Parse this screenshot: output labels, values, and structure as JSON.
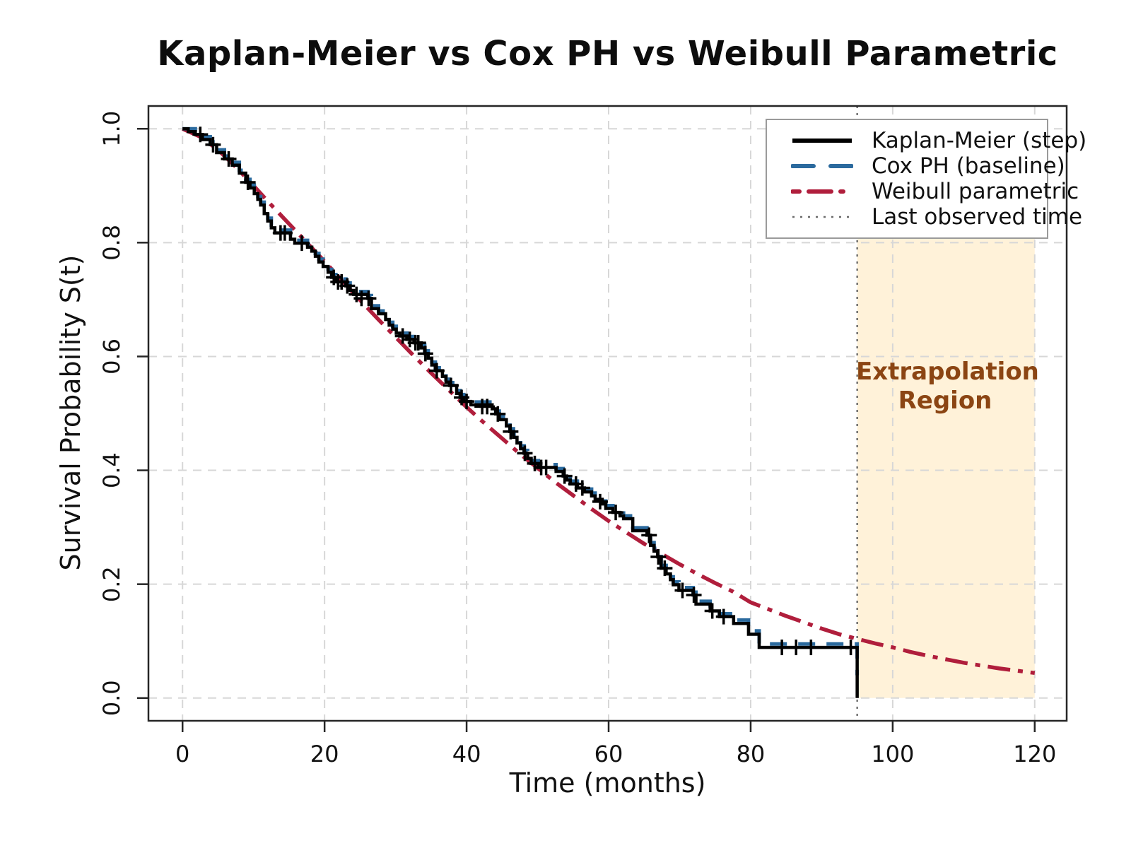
{
  "title": "Kaplan-Meier vs Cox PH vs Weibull Parametric",
  "axes": {
    "xlabel": "Time (months)",
    "ylabel": "Survival Probability S(t)"
  },
  "annotations": {
    "extrapolation_line1": "Extrapolation",
    "extrapolation_line2": "Region"
  },
  "legend": [
    {
      "label": "Kaplan-Meier (step)",
      "line": "solid",
      "color": "#000000"
    },
    {
      "label": "Cox PH (baseline)",
      "line": "dashed",
      "color": "#2B6A9E"
    },
    {
      "label": "Weibull parametric",
      "line": "dashdot",
      "color": "#B01E3C"
    },
    {
      "label": "Last observed time",
      "line": "dotted",
      "color": "#6b6b6b"
    }
  ],
  "chart_data": {
    "type": "line",
    "title": "Kaplan-Meier vs Cox PH vs Weibull Parametric",
    "xlabel": "Time (months)",
    "ylabel": "Survival Probability S(t)",
    "xlim": [
      -4.8,
      124.5
    ],
    "ylim": [
      -0.04,
      1.04
    ],
    "xticks": [
      0,
      20,
      40,
      60,
      80,
      100,
      120
    ],
    "xtick_labels": [
      "0",
      "20",
      "40",
      "60",
      "80",
      "100",
      "120"
    ],
    "yticks": [
      0.0,
      0.2,
      0.4,
      0.6,
      0.8,
      1.0
    ],
    "ytick_labels": [
      "0.0",
      "0.2",
      "0.4",
      "0.6",
      "0.8",
      "1.0"
    ],
    "grid": true,
    "grid_color": "#d7d7d7",
    "legend_position": "top-right",
    "last_observed_time": 95,
    "extrapolation_region": {
      "x0": 95,
      "x1": 120,
      "y0": 0.0,
      "y1": 1.0,
      "fill": "#FFF2D9",
      "label_color": "#8B4513"
    },
    "series": [
      {
        "name": "Kaplan-Meier (step)",
        "style": "step",
        "dash": "solid",
        "color": "#000000",
        "width": 4.5,
        "points": [
          [
            0,
            1.0
          ],
          [
            0.8,
            0.995
          ],
          [
            1.8,
            0.99
          ],
          [
            2.8,
            0.981
          ],
          [
            3.9,
            0.972
          ],
          [
            4.8,
            0.958
          ],
          [
            5.9,
            0.947
          ],
          [
            7.0,
            0.936
          ],
          [
            8.0,
            0.922
          ],
          [
            8.9,
            0.906
          ],
          [
            9.5,
            0.896
          ],
          [
            10.1,
            0.886
          ],
          [
            10.6,
            0.876
          ],
          [
            11.0,
            0.866
          ],
          [
            11.5,
            0.851
          ],
          [
            12.0,
            0.838
          ],
          [
            12.5,
            0.826
          ],
          [
            13.0,
            0.817
          ],
          [
            15.2,
            0.806
          ],
          [
            15.8,
            0.799
          ],
          [
            17.6,
            0.792
          ],
          [
            18.2,
            0.785
          ],
          [
            18.7,
            0.776
          ],
          [
            19.2,
            0.766
          ],
          [
            19.8,
            0.758
          ],
          [
            20.5,
            0.748
          ],
          [
            21.0,
            0.739
          ],
          [
            21.6,
            0.731
          ],
          [
            23.0,
            0.724
          ],
          [
            23.6,
            0.716
          ],
          [
            24.1,
            0.709
          ],
          [
            26.1,
            0.702
          ],
          [
            26.6,
            0.684
          ],
          [
            27.6,
            0.675
          ],
          [
            28.6,
            0.665
          ],
          [
            29.1,
            0.655
          ],
          [
            29.6,
            0.648
          ],
          [
            30.1,
            0.641
          ],
          [
            30.6,
            0.636
          ],
          [
            31.6,
            0.63
          ],
          [
            32.6,
            0.624
          ],
          [
            33.6,
            0.615
          ],
          [
            34.1,
            0.605
          ],
          [
            34.6,
            0.597
          ],
          [
            35.1,
            0.585
          ],
          [
            35.6,
            0.575
          ],
          [
            36.6,
            0.565
          ],
          [
            37.1,
            0.555
          ],
          [
            37.6,
            0.549
          ],
          [
            38.6,
            0.535
          ],
          [
            39.1,
            0.528
          ],
          [
            39.6,
            0.521
          ],
          [
            40.6,
            0.515
          ],
          [
            43.6,
            0.508
          ],
          [
            44.1,
            0.499
          ],
          [
            44.6,
            0.489
          ],
          [
            45.6,
            0.478
          ],
          [
            46.1,
            0.468
          ],
          [
            46.6,
            0.458
          ],
          [
            47.1,
            0.448
          ],
          [
            47.6,
            0.438
          ],
          [
            48.1,
            0.43
          ],
          [
            48.6,
            0.421
          ],
          [
            49.1,
            0.412
          ],
          [
            50.1,
            0.405
          ],
          [
            52.6,
            0.398
          ],
          [
            53.6,
            0.39
          ],
          [
            54.1,
            0.383
          ],
          [
            54.6,
            0.376
          ],
          [
            55.6,
            0.369
          ],
          [
            56.6,
            0.362
          ],
          [
            57.6,
            0.355
          ],
          [
            58.1,
            0.349
          ],
          [
            59.1,
            0.341
          ],
          [
            59.6,
            0.333
          ],
          [
            60.6,
            0.326
          ],
          [
            61.6,
            0.32
          ],
          [
            62.1,
            0.315
          ],
          [
            63.4,
            0.294
          ],
          [
            65.4,
            0.286
          ],
          [
            65.9,
            0.268
          ],
          [
            66.4,
            0.258
          ],
          [
            66.9,
            0.248
          ],
          [
            67.4,
            0.228
          ],
          [
            68.1,
            0.218
          ],
          [
            68.7,
            0.208
          ],
          [
            69.1,
            0.199
          ],
          [
            69.9,
            0.189
          ],
          [
            71.9,
            0.181
          ],
          [
            72.3,
            0.165
          ],
          [
            74.3,
            0.153
          ],
          [
            75.6,
            0.143
          ],
          [
            77.6,
            0.131
          ],
          [
            79.7,
            0.112
          ],
          [
            81.2,
            0.089
          ],
          [
            95,
            0.089
          ],
          [
            95,
            0.0
          ]
        ]
      },
      {
        "name": "Cox PH (baseline)",
        "style": "step",
        "dash": "dashed",
        "color": "#2B6A9E",
        "width": 5,
        "points": [
          [
            0,
            1.0
          ],
          [
            0.8,
            1.0
          ],
          [
            1.8,
            0.995
          ],
          [
            2.8,
            0.986
          ],
          [
            3.9,
            0.977
          ],
          [
            4.8,
            0.963
          ],
          [
            5.9,
            0.952
          ],
          [
            7.0,
            0.941
          ],
          [
            8.0,
            0.927
          ],
          [
            8.9,
            0.911
          ],
          [
            9.5,
            0.901
          ],
          [
            10.1,
            0.891
          ],
          [
            10.6,
            0.881
          ],
          [
            11.0,
            0.871
          ],
          [
            11.5,
            0.856
          ],
          [
            12.0,
            0.843
          ],
          [
            12.5,
            0.831
          ],
          [
            13.0,
            0.822
          ],
          [
            15.2,
            0.811
          ],
          [
            15.8,
            0.804
          ],
          [
            17.6,
            0.797
          ],
          [
            18.2,
            0.79
          ],
          [
            18.7,
            0.781
          ],
          [
            19.2,
            0.771
          ],
          [
            19.8,
            0.763
          ],
          [
            20.5,
            0.753
          ],
          [
            21.0,
            0.744
          ],
          [
            21.6,
            0.736
          ],
          [
            23.0,
            0.729
          ],
          [
            23.6,
            0.721
          ],
          [
            24.1,
            0.714
          ],
          [
            26.1,
            0.707
          ],
          [
            26.6,
            0.689
          ],
          [
            27.6,
            0.68
          ],
          [
            28.6,
            0.67
          ],
          [
            29.1,
            0.66
          ],
          [
            29.6,
            0.653
          ],
          [
            30.1,
            0.646
          ],
          [
            30.6,
            0.641
          ],
          [
            31.6,
            0.635
          ],
          [
            32.6,
            0.629
          ],
          [
            33.6,
            0.62
          ],
          [
            34.1,
            0.61
          ],
          [
            34.6,
            0.602
          ],
          [
            35.1,
            0.59
          ],
          [
            35.6,
            0.58
          ],
          [
            36.6,
            0.57
          ],
          [
            37.1,
            0.56
          ],
          [
            37.6,
            0.554
          ],
          [
            38.6,
            0.54
          ],
          [
            39.1,
            0.533
          ],
          [
            39.6,
            0.526
          ],
          [
            40.6,
            0.52
          ],
          [
            43.6,
            0.513
          ],
          [
            44.1,
            0.504
          ],
          [
            44.6,
            0.494
          ],
          [
            45.6,
            0.483
          ],
          [
            46.1,
            0.473
          ],
          [
            46.6,
            0.463
          ],
          [
            47.1,
            0.453
          ],
          [
            47.6,
            0.443
          ],
          [
            48.1,
            0.435
          ],
          [
            48.6,
            0.426
          ],
          [
            49.1,
            0.417
          ],
          [
            50.1,
            0.41
          ],
          [
            52.6,
            0.403
          ],
          [
            53.6,
            0.395
          ],
          [
            54.1,
            0.388
          ],
          [
            54.6,
            0.381
          ],
          [
            55.6,
            0.374
          ],
          [
            56.6,
            0.367
          ],
          [
            57.6,
            0.36
          ],
          [
            58.1,
            0.354
          ],
          [
            59.1,
            0.346
          ],
          [
            59.6,
            0.338
          ],
          [
            60.6,
            0.331
          ],
          [
            61.6,
            0.325
          ],
          [
            62.1,
            0.32
          ],
          [
            63.4,
            0.299
          ],
          [
            65.4,
            0.291
          ],
          [
            65.9,
            0.273
          ],
          [
            66.4,
            0.263
          ],
          [
            66.9,
            0.253
          ],
          [
            67.4,
            0.233
          ],
          [
            68.1,
            0.223
          ],
          [
            68.7,
            0.213
          ],
          [
            69.1,
            0.204
          ],
          [
            69.9,
            0.194
          ],
          [
            71.9,
            0.186
          ],
          [
            72.3,
            0.17
          ],
          [
            74.3,
            0.158
          ],
          [
            75.6,
            0.148
          ],
          [
            77.6,
            0.137
          ],
          [
            79.7,
            0.118
          ],
          [
            81.2,
            0.095
          ],
          [
            95,
            0.095
          ],
          [
            95,
            0.04
          ]
        ]
      },
      {
        "name": "Weibull parametric",
        "style": "smooth",
        "dash": "dashdot",
        "color": "#B01E3C",
        "width": 5.5,
        "points": [
          [
            0,
            1.0
          ],
          [
            2.5,
            0.986
          ],
          [
            5,
            0.963
          ],
          [
            7.5,
            0.933
          ],
          [
            10,
            0.9
          ],
          [
            12.5,
            0.866
          ],
          [
            15,
            0.833
          ],
          [
            17.5,
            0.8
          ],
          [
            20,
            0.767
          ],
          [
            22.5,
            0.733
          ],
          [
            25,
            0.699
          ],
          [
            27.5,
            0.666
          ],
          [
            30,
            0.634
          ],
          [
            32.5,
            0.602
          ],
          [
            35,
            0.571
          ],
          [
            37.5,
            0.541
          ],
          [
            40,
            0.511
          ],
          [
            42.5,
            0.483
          ],
          [
            45,
            0.456
          ],
          [
            47.5,
            0.429
          ],
          [
            50,
            0.404
          ],
          [
            52.5,
            0.379
          ],
          [
            55,
            0.356
          ],
          [
            57.5,
            0.333
          ],
          [
            60,
            0.311
          ],
          [
            62.5,
            0.291
          ],
          [
            65,
            0.271
          ],
          [
            67.5,
            0.253
          ],
          [
            70,
            0.235
          ],
          [
            72.5,
            0.218
          ],
          [
            75,
            0.202
          ],
          [
            77.5,
            0.187
          ],
          [
            80,
            0.168
          ],
          [
            82.5,
            0.156
          ],
          [
            85,
            0.144
          ],
          [
            87.5,
            0.133
          ],
          [
            90,
            0.122
          ],
          [
            92.5,
            0.112
          ],
          [
            95,
            0.104
          ],
          [
            97.5,
            0.096
          ],
          [
            100,
            0.089
          ],
          [
            102.5,
            0.081
          ],
          [
            105,
            0.074
          ],
          [
            107.5,
            0.068
          ],
          [
            110,
            0.062
          ],
          [
            112.5,
            0.057
          ],
          [
            115,
            0.052
          ],
          [
            117.5,
            0.048
          ],
          [
            120,
            0.044
          ]
        ]
      }
    ],
    "censor_marks": [
      [
        2.5,
        0.99
      ],
      [
        4.3,
        0.972
      ],
      [
        6.5,
        0.947
      ],
      [
        9.2,
        0.906
      ],
      [
        13.8,
        0.817
      ],
      [
        14.4,
        0.817
      ],
      [
        16.8,
        0.799
      ],
      [
        21.3,
        0.739
      ],
      [
        21.9,
        0.731
      ],
      [
        22.4,
        0.731
      ],
      [
        23.2,
        0.724
      ],
      [
        24.5,
        0.709
      ],
      [
        25.2,
        0.702
      ],
      [
        26.2,
        0.702
      ],
      [
        31.0,
        0.636
      ],
      [
        32.0,
        0.63
      ],
      [
        32.8,
        0.624
      ],
      [
        33.2,
        0.624
      ],
      [
        34.2,
        0.605
      ],
      [
        35.8,
        0.575
      ],
      [
        37.8,
        0.549
      ],
      [
        39.3,
        0.528
      ],
      [
        40.0,
        0.521
      ],
      [
        42.2,
        0.512
      ],
      [
        42.9,
        0.512
      ],
      [
        44.4,
        0.499
      ],
      [
        46.2,
        0.468
      ],
      [
        48.2,
        0.43
      ],
      [
        49.6,
        0.412
      ],
      [
        50.5,
        0.405
      ],
      [
        51.2,
        0.405
      ],
      [
        53.8,
        0.39
      ],
      [
        55.4,
        0.376
      ],
      [
        56.3,
        0.369
      ],
      [
        58.8,
        0.345
      ],
      [
        61.0,
        0.326
      ],
      [
        65.7,
        0.286
      ],
      [
        67.0,
        0.248
      ],
      [
        67.9,
        0.228
      ],
      [
        70.4,
        0.189
      ],
      [
        72.0,
        0.181
      ],
      [
        74.6,
        0.153
      ],
      [
        76.2,
        0.143
      ],
      [
        84.4,
        0.089
      ],
      [
        86.4,
        0.089
      ],
      [
        88.5,
        0.089
      ],
      [
        94.1,
        0.089
      ]
    ]
  }
}
